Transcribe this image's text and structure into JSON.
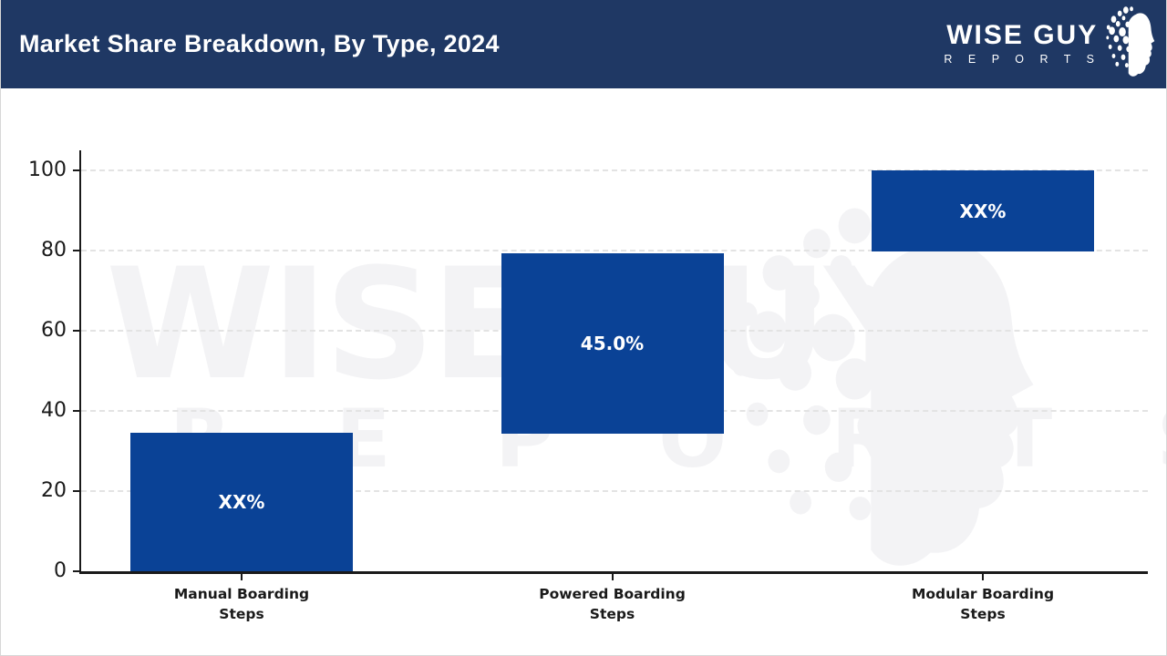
{
  "header": {
    "title": "Market Share Breakdown, By Type, 2024",
    "background": "#1f3864",
    "logo": {
      "line1": "WISE GUY",
      "line2": "R E P O R T S"
    }
  },
  "watermark": {
    "line1": "WISE GUY",
    "line2": "R E P O R T S"
  },
  "chart_data": {
    "type": "bar",
    "subtype": "waterfall-stacked",
    "title": "Market Share Breakdown, By Type, 2024",
    "categories": [
      [
        "Manual Boarding",
        "Steps"
      ],
      [
        "Powered Boarding",
        "Steps"
      ],
      [
        "Modular Boarding",
        "Steps"
      ]
    ],
    "series": [
      {
        "name": "Manual Boarding Steps",
        "base": 0,
        "top": 34.5,
        "label": "XX%"
      },
      {
        "name": "Powered Boarding Steps",
        "base": 34.3,
        "top": 79.3,
        "label": "45.0%"
      },
      {
        "name": "Modular Boarding Steps",
        "base": 79.7,
        "top": 100,
        "label": "XX%"
      }
    ],
    "yticks": [
      0,
      20,
      40,
      60,
      80,
      100
    ],
    "ylim": [
      0,
      105
    ],
    "xlabel": "",
    "ylabel": "",
    "grid": "horizontal-dashed",
    "legend": "none",
    "bar_color": "#0a4296",
    "bar_label_color": "#ffffff",
    "axis_color": "#1a1a1a",
    "gridline_color": "#e3e3e3"
  }
}
